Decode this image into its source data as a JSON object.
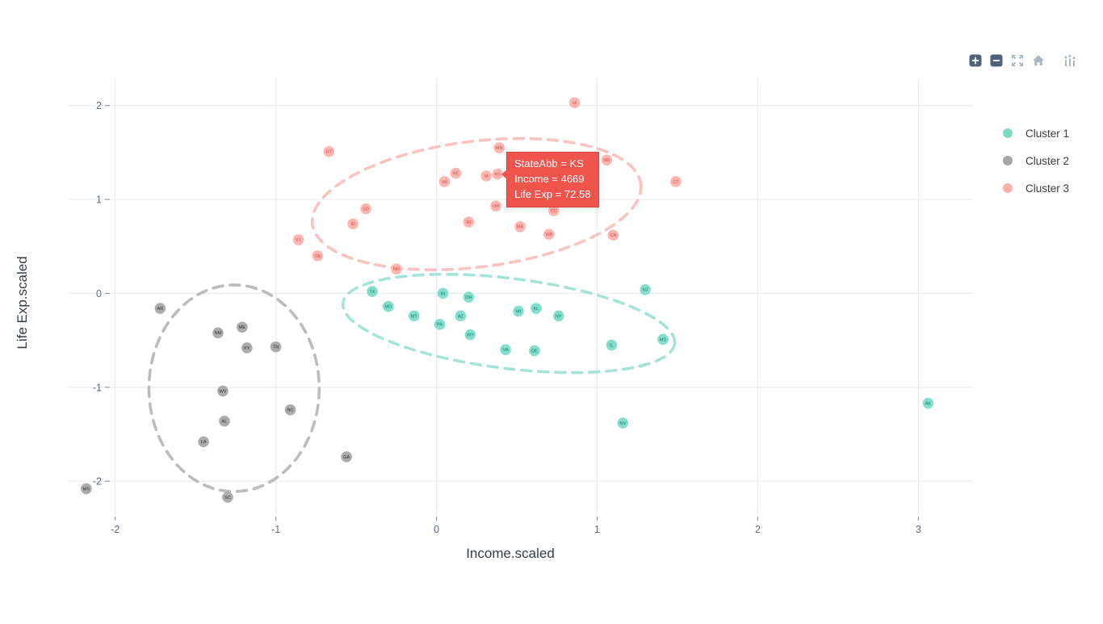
{
  "chart_data": {
    "type": "scatter",
    "title": "",
    "xlabel": "Income.scaled",
    "ylabel": "Life Exp.scaled",
    "xlim": [
      -2.29,
      3.34
    ],
    "ylim": [
      -2.36,
      2.29
    ],
    "xticks": [
      -2,
      -1,
      0,
      1,
      2,
      3
    ],
    "yticks": [
      -2,
      -1,
      0,
      1,
      2
    ],
    "grid": true,
    "legend_position": "right",
    "series": [
      {
        "name": "Cluster 1",
        "color": "#7cdbc7",
        "label_color": "#0c7f6d",
        "points": [
          {
            "label": "TX",
            "x": -0.4,
            "y": 0.02
          },
          {
            "label": "MO",
            "x": -0.3,
            "y": -0.14
          },
          {
            "label": "IN",
            "x": 0.04,
            "y": 0.0
          },
          {
            "label": "OH",
            "x": 0.2,
            "y": -0.04
          },
          {
            "label": "PA",
            "x": 0.02,
            "y": -0.33
          },
          {
            "label": "AZ",
            "x": 0.15,
            "y": -0.24
          },
          {
            "label": "MT",
            "x": -0.14,
            "y": -0.24
          },
          {
            "label": "MI",
            "x": 0.51,
            "y": -0.19
          },
          {
            "label": "FL",
            "x": 0.62,
            "y": -0.16
          },
          {
            "label": "NY",
            "x": 0.76,
            "y": -0.24
          },
          {
            "label": "WY",
            "x": 0.21,
            "y": -0.44
          },
          {
            "label": "VA",
            "x": 0.43,
            "y": -0.6
          },
          {
            "label": "DE",
            "x": 0.61,
            "y": -0.61
          },
          {
            "label": "IL",
            "x": 1.09,
            "y": -0.55
          },
          {
            "label": "MD",
            "x": 1.41,
            "y": -0.49
          },
          {
            "label": "NJ",
            "x": 1.3,
            "y": 0.04
          },
          {
            "label": "NV",
            "x": 1.16,
            "y": -1.38
          },
          {
            "label": "AK",
            "x": 3.06,
            "y": -1.17
          }
        ]
      },
      {
        "name": "Cluster 2",
        "color": "#a6a6a6",
        "label_color": "#2f2f2f",
        "points": [
          {
            "label": "AR",
            "x": -1.72,
            "y": -0.16
          },
          {
            "label": "ME",
            "x": -1.21,
            "y": -0.36
          },
          {
            "label": "NM",
            "x": -1.36,
            "y": -0.42
          },
          {
            "label": "KY",
            "x": -1.18,
            "y": -0.58
          },
          {
            "label": "TN",
            "x": -1.0,
            "y": -0.57
          },
          {
            "label": "WV",
            "x": -1.33,
            "y": -1.04
          },
          {
            "label": "NC",
            "x": -0.91,
            "y": -1.24
          },
          {
            "label": "AL",
            "x": -1.32,
            "y": -1.36
          },
          {
            "label": "LA",
            "x": -1.45,
            "y": -1.58
          },
          {
            "label": "GA",
            "x": -0.56,
            "y": -1.74
          },
          {
            "label": "MS",
            "x": -2.18,
            "y": -2.08
          },
          {
            "label": "SC",
            "x": -1.3,
            "y": -2.17
          }
        ]
      },
      {
        "name": "Cluster 3",
        "color": "#ffb0ab",
        "label_color": "#e2453c",
        "points": [
          {
            "label": "HI",
            "x": 0.86,
            "y": 2.03
          },
          {
            "label": "MN",
            "x": 0.39,
            "y": 1.55
          },
          {
            "label": "UT",
            "x": -0.67,
            "y": 1.51
          },
          {
            "label": "ND",
            "x": 1.06,
            "y": 1.42
          },
          {
            "label": "NE",
            "x": 0.12,
            "y": 1.28
          },
          {
            "label": "KS",
            "x": 0.38,
            "y": 1.27
          },
          {
            "label": "IA",
            "x": 0.31,
            "y": 1.25
          },
          {
            "label": "WI",
            "x": 0.05,
            "y": 1.19
          },
          {
            "label": "CT",
            "x": 1.49,
            "y": 1.19
          },
          {
            "label": "OR",
            "x": 0.37,
            "y": 0.93
          },
          {
            "label": "SD",
            "x": -0.44,
            "y": 0.9
          },
          {
            "label": "CO",
            "x": 0.73,
            "y": 0.88
          },
          {
            "label": "RI",
            "x": 0.2,
            "y": 0.76
          },
          {
            "label": "ID",
            "x": -0.52,
            "y": 0.74
          },
          {
            "label": "MA",
            "x": 0.52,
            "y": 0.71
          },
          {
            "label": "WA",
            "x": 0.7,
            "y": 0.63
          },
          {
            "label": "CA",
            "x": 1.1,
            "y": 0.62
          },
          {
            "label": "VT",
            "x": -0.86,
            "y": 0.57
          },
          {
            "label": "OK",
            "x": -0.74,
            "y": 0.4
          },
          {
            "label": "NH",
            "x": -0.25,
            "y": 0.26
          }
        ]
      }
    ],
    "ellipses": [
      {
        "cluster": "Cluster 1",
        "cx": 0.45,
        "cy": -0.32,
        "rx": 1.04,
        "ry": 0.48,
        "rotation_deg": 7,
        "color": "#8edcce",
        "opacity": 0.8
      },
      {
        "cluster": "Cluster 2",
        "cx": -1.26,
        "cy": -1.01,
        "rx": 0.53,
        "ry": 1.1,
        "rotation_deg": 0,
        "color": "#b0b0b0",
        "opacity": 0.85
      },
      {
        "cluster": "Cluster 3",
        "cx": 0.25,
        "cy": 0.95,
        "rx": 1.03,
        "ry": 0.67,
        "rotation_deg": -7,
        "color": "#f8b8b5",
        "opacity": 0.85
      }
    ],
    "tooltip": {
      "target_point": "KS",
      "target": {
        "x": 0.38,
        "y": 1.27
      },
      "lines": [
        "StateAbb = KS",
        "Income = 4669",
        "Life Exp = 72.58"
      ],
      "bg": "#f0544c",
      "text_color": "#ffffff"
    }
  },
  "legend": {
    "items": [
      {
        "label": "Cluster 1",
        "color": "#7cdbc7"
      },
      {
        "label": "Cluster 2",
        "color": "#a6a6a6"
      },
      {
        "label": "Cluster 3",
        "color": "#ffb0ab"
      }
    ]
  },
  "modebar": {
    "buttons": [
      "zoom-in",
      "zoom-out",
      "autoscale",
      "reset-axes",
      "plotly-logo"
    ]
  }
}
